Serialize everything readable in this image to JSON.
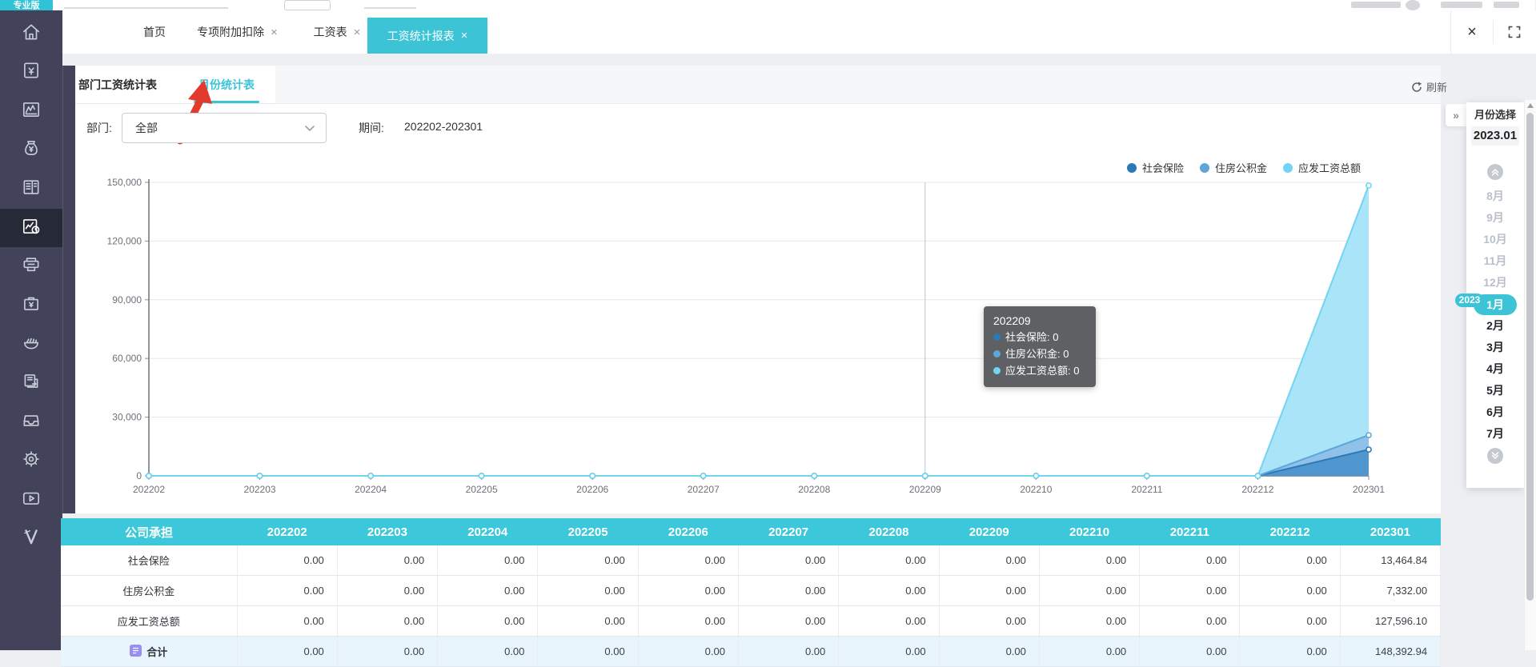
{
  "app": {
    "edition_badge": "专业版",
    "accent_color": "#3cc4d6"
  },
  "tabs": {
    "items": [
      {
        "label": "首页",
        "closable": false,
        "active": false
      },
      {
        "label": "专项附加扣除",
        "closable": true,
        "active": false
      },
      {
        "label": "工资表",
        "closable": true,
        "active": false
      },
      {
        "label": "工资统计报表",
        "closable": true,
        "active": true
      }
    ]
  },
  "sidebar": {
    "items": [
      {
        "name": "nav-home",
        "icon": "home-icon",
        "active": false
      },
      {
        "name": "nav-invoices",
        "icon": "invoice-icon",
        "active": false
      },
      {
        "name": "nav-reports",
        "icon": "trend-chart-icon",
        "active": false
      },
      {
        "name": "nav-funds",
        "icon": "money-bag-icon",
        "active": false
      },
      {
        "name": "nav-company",
        "icon": "company-icon",
        "active": false
      },
      {
        "name": "nav-statistics",
        "icon": "statistics-icon",
        "active": true
      },
      {
        "name": "nav-cashier",
        "icon": "cashier-icon",
        "active": false
      },
      {
        "name": "nav-assets",
        "icon": "fixed-assets-icon",
        "active": false
      },
      {
        "name": "nav-salary",
        "icon": "salary-basket-icon",
        "active": false
      },
      {
        "name": "nav-transfer",
        "icon": "doc-transfer-icon",
        "active": false
      },
      {
        "name": "nav-archive",
        "icon": "archive-icon",
        "active": false
      },
      {
        "name": "nav-settings",
        "icon": "gear-icon",
        "active": false
      },
      {
        "name": "nav-tutorial",
        "icon": "video-icon",
        "active": false
      },
      {
        "name": "nav-logo",
        "icon": "v-logo-icon",
        "active": false
      }
    ]
  },
  "subtabs": {
    "items": [
      {
        "label": "部门工资统计表",
        "active": false
      },
      {
        "label": "月份统计表",
        "active": true
      }
    ],
    "refresh_label": "刷新"
  },
  "filters": {
    "department_label": "部门:",
    "department_value": "全部",
    "period_label": "期间:",
    "period_value": "202202-202301"
  },
  "chart_data": {
    "type": "area",
    "stacked": true,
    "x": [
      "202202",
      "202203",
      "202204",
      "202205",
      "202206",
      "202207",
      "202208",
      "202209",
      "202210",
      "202211",
      "202212",
      "202301"
    ],
    "series": [
      {
        "name": "社会保险",
        "color": "#2b7ab8",
        "fill": "#4f97ce",
        "values": [
          0,
          0,
          0,
          0,
          0,
          0,
          0,
          0,
          0,
          0,
          0,
          13464.84
        ]
      },
      {
        "name": "住房公积金",
        "color": "#5ea6d8",
        "fill": "#8fc1e9",
        "values": [
          0,
          0,
          0,
          0,
          0,
          0,
          0,
          0,
          0,
          0,
          0,
          7332.0
        ]
      },
      {
        "name": "应发工资总额",
        "color": "#72d4f2",
        "fill": "#a9e4f8",
        "values": [
          0,
          0,
          0,
          0,
          0,
          0,
          0,
          0,
          0,
          0,
          0,
          127596.1
        ]
      }
    ],
    "ylim": [
      0,
      150000
    ],
    "yticks": [
      0,
      30000,
      60000,
      90000,
      120000,
      150000
    ],
    "grid": true,
    "legend_position": "top-right",
    "tooltip": {
      "title": "202209",
      "rows": [
        {
          "name": "社会保险",
          "value": "0"
        },
        {
          "name": "住房公积金",
          "value": "0"
        },
        {
          "name": "应发工资总额",
          "value": "0"
        }
      ]
    }
  },
  "table": {
    "header": [
      "公司承担",
      "202202",
      "202203",
      "202204",
      "202205",
      "202206",
      "202207",
      "202208",
      "202209",
      "202210",
      "202211",
      "202212",
      "202301"
    ],
    "rows": [
      {
        "label": "社会保险",
        "total_row": false,
        "values": [
          "0.00",
          "0.00",
          "0.00",
          "0.00",
          "0.00",
          "0.00",
          "0.00",
          "0.00",
          "0.00",
          "0.00",
          "0.00",
          "13,464.84"
        ]
      },
      {
        "label": "住房公积金",
        "total_row": false,
        "values": [
          "0.00",
          "0.00",
          "0.00",
          "0.00",
          "0.00",
          "0.00",
          "0.00",
          "0.00",
          "0.00",
          "0.00",
          "0.00",
          "7,332.00"
        ]
      },
      {
        "label": "应发工资总额",
        "total_row": false,
        "values": [
          "0.00",
          "0.00",
          "0.00",
          "0.00",
          "0.00",
          "0.00",
          "0.00",
          "0.00",
          "0.00",
          "0.00",
          "0.00",
          "127,596.10"
        ]
      },
      {
        "label": "合计",
        "total_row": true,
        "values": [
          "0.00",
          "0.00",
          "0.00",
          "0.00",
          "0.00",
          "0.00",
          "0.00",
          "0.00",
          "0.00",
          "0.00",
          "0.00",
          "148,392.94"
        ]
      }
    ]
  },
  "month_panel": {
    "title": "月份选择",
    "current": "2023.01",
    "year_badge": "2023",
    "months": [
      {
        "label": "8月",
        "state": "disabled"
      },
      {
        "label": "9月",
        "state": "disabled"
      },
      {
        "label": "10月",
        "state": "disabled"
      },
      {
        "label": "11月",
        "state": "disabled"
      },
      {
        "label": "12月",
        "state": "disabled"
      },
      {
        "label": "1月",
        "state": "selected"
      },
      {
        "label": "2月",
        "state": "normal"
      },
      {
        "label": "3月",
        "state": "normal"
      },
      {
        "label": "4月",
        "state": "normal"
      },
      {
        "label": "5月",
        "state": "normal"
      },
      {
        "label": "6月",
        "state": "normal"
      },
      {
        "label": "7月",
        "state": "normal"
      }
    ]
  }
}
